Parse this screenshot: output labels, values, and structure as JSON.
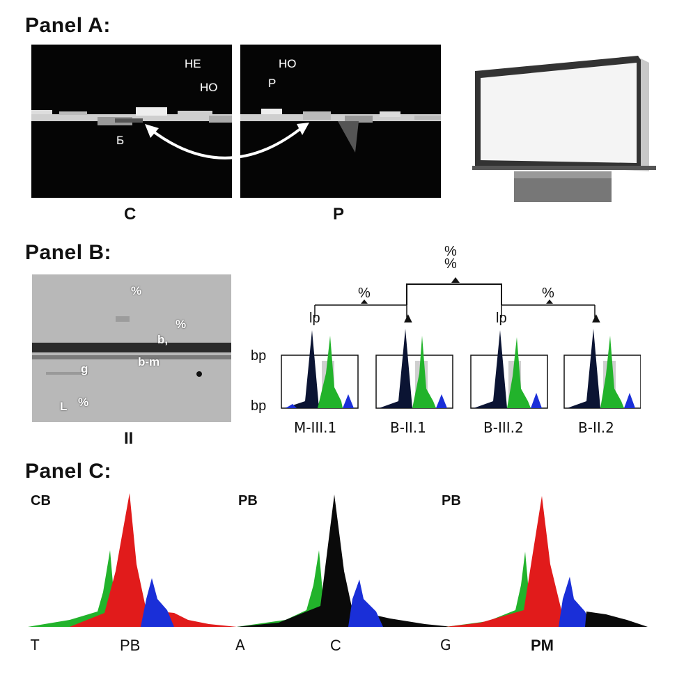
{
  "panel_a": {
    "title": "Panel A:",
    "left_image": {
      "labels": [
        "HE",
        "HO",
        "Б"
      ],
      "caption": "C"
    },
    "right_image": {
      "labels": [
        "HO",
        "P"
      ],
      "caption": "P"
    },
    "display_icon": "monitor-display-icon"
  },
  "panel_b": {
    "title": "Panel B:",
    "gel": {
      "labels": [
        "%",
        "%",
        "b,",
        "b-m",
        "g",
        "L",
        "%"
      ],
      "caption": "II"
    },
    "tree": {
      "root_label": "%\n%",
      "left_label": "%",
      "right_label": "%",
      "leaf_marks": [
        "lp",
        "▲",
        "lp",
        "▲"
      ]
    },
    "axis_labels": [
      "bp",
      "bp"
    ],
    "samples": [
      "M-III.1",
      "B-II.1",
      "B-III.2",
      "B-II.2"
    ]
  },
  "panel_c": {
    "title": "Panel C:",
    "traces": [
      {
        "top_label": "CB",
        "left_label": "T",
        "bottom_label": "PB",
        "main_color": "#e11b1b"
      },
      {
        "top_label": "PB",
        "left_label": "A",
        "bottom_label": "C",
        "main_color": "#0a0a0a"
      },
      {
        "top_label": "PB",
        "left_label": "G",
        "bottom_label": "PM",
        "main_color": "#e11b1b"
      }
    ]
  },
  "colors": {
    "navy": "#0b1433",
    "green": "#22b32b",
    "blue": "#1a2fd8",
    "red": "#e11b1b"
  }
}
